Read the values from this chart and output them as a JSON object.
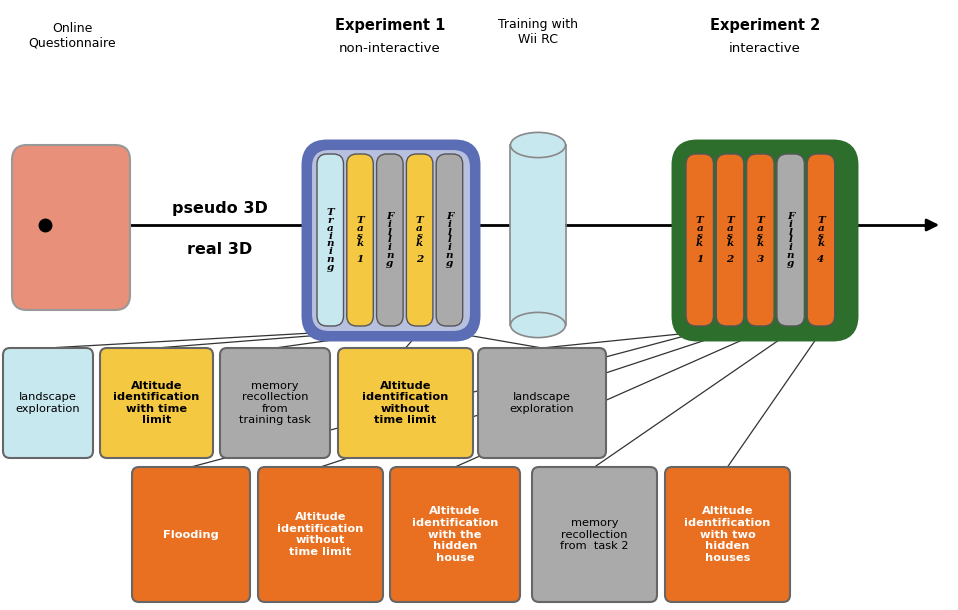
{
  "bg_color": "#ffffff",
  "colors": {
    "salmon": "#E8907A",
    "cyan_light": "#C8E8F0",
    "blue_border": "#5B6DB5",
    "blue_fill": "#8090C8",
    "yellow": "#F5C842",
    "gray": "#AAAAAA",
    "gray_dark": "#888888",
    "orange": "#E87020",
    "green_border": "#2D6E2D",
    "green_fill": "#2D6E2D",
    "black": "#111111"
  },
  "exp1_cols": [
    "T\nr\na\ni\nn\ni\nn\ng",
    "T\na\ns\nk\n \n1",
    "F\ni\nl\nl\ni\nn\ng",
    "T\na\ns\nk\n \n2",
    "F\ni\nl\nl\ni\nn\ng"
  ],
  "exp1_col_colors": [
    "#C8E8F0",
    "#F5C842",
    "#AAAAAA",
    "#F5C842",
    "#AAAAAA"
  ],
  "exp2_cols": [
    "T\na\ns\nk\n \n1",
    "T\na\ns\nk\n \n2",
    "T\na\ns\nk\n \n3",
    "F\ni\nl\nl\ni\nn\ng",
    "T\na\ns\nk\n \n4"
  ],
  "exp2_col_colors": [
    "#E87020",
    "#E87020",
    "#E87020",
    "#AAAAAA",
    "#E87020"
  ],
  "row1_boxes": [
    {
      "text": "landscape\nexploration",
      "color": "#C8E8F0",
      "bold": false,
      "text_color": "#111111"
    },
    {
      "text": "Altitude\nidentification\nwith time\nlimit",
      "color": "#F5C842",
      "bold": true,
      "text_color": "#111111"
    },
    {
      "text": "memory\nrecollection\nfrom\ntraining task",
      "color": "#AAAAAA",
      "bold": false,
      "text_color": "#111111"
    },
    {
      "text": "Altitude\nidentification\nwithout\ntime limit",
      "color": "#F5C842",
      "bold": true,
      "text_color": "#111111"
    },
    {
      "text": "landscape\nexploration",
      "color": "#AAAAAA",
      "bold": false,
      "text_color": "#111111"
    }
  ],
  "row2_boxes": [
    {
      "text": "Flooding",
      "color": "#E87020",
      "bold": true,
      "text_color": "#111111"
    },
    {
      "text": "Altitude\nidentification\nwithout\ntime limit",
      "color": "#E87020",
      "bold": true,
      "text_color": "#111111"
    },
    {
      "text": "Altitude\nidentification\nwith the\nhidden\nhouse",
      "color": "#E87020",
      "bold": true,
      "text_color": "#111111"
    },
    {
      "text": "memory\nrecollection\nfrom  task 2",
      "color": "#AAAAAA",
      "bold": false,
      "text_color": "#111111"
    },
    {
      "text": "Altitude\nidentification\nwith two\nhidden\nhouses",
      "color": "#E87020",
      "bold": true,
      "text_color": "#111111"
    }
  ]
}
